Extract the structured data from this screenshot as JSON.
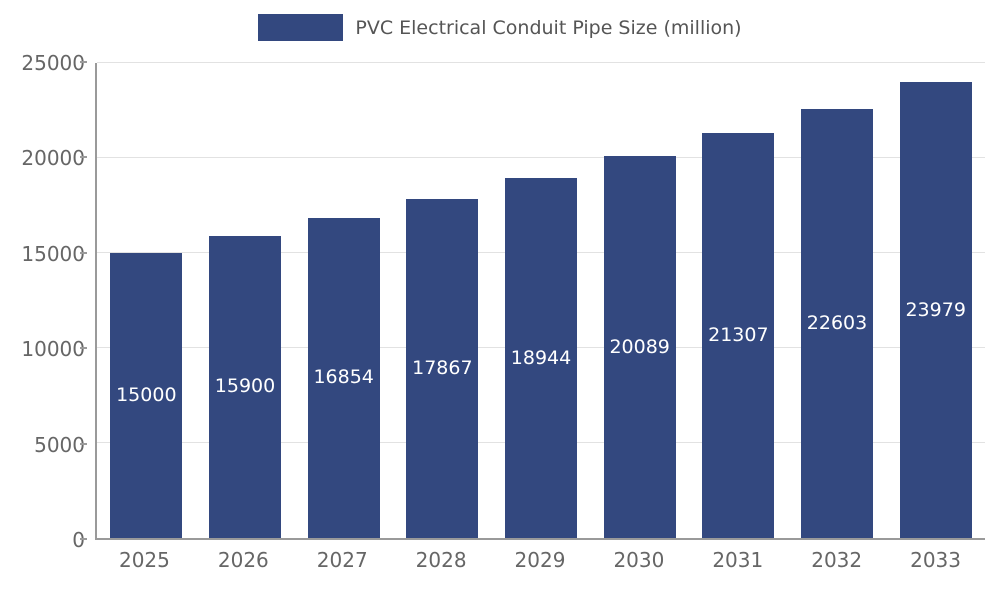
{
  "chart_data": {
    "type": "bar",
    "title": "PVC Electrical Conduit Pipe Size (million)",
    "categories": [
      "2025",
      "2026",
      "2027",
      "2028",
      "2029",
      "2030",
      "2031",
      "2032",
      "2033"
    ],
    "values": [
      15000,
      15900,
      16854,
      17867,
      18944,
      20089,
      21307,
      22603,
      23979
    ],
    "xlabel": "",
    "ylabel": "",
    "ylim": [
      0,
      25000
    ],
    "ytick_step": 5000,
    "grid": true,
    "legend_position": "top",
    "bar_color": "#33487F",
    "value_label_color": "#ffffff",
    "axis_text_color": "#666666"
  }
}
